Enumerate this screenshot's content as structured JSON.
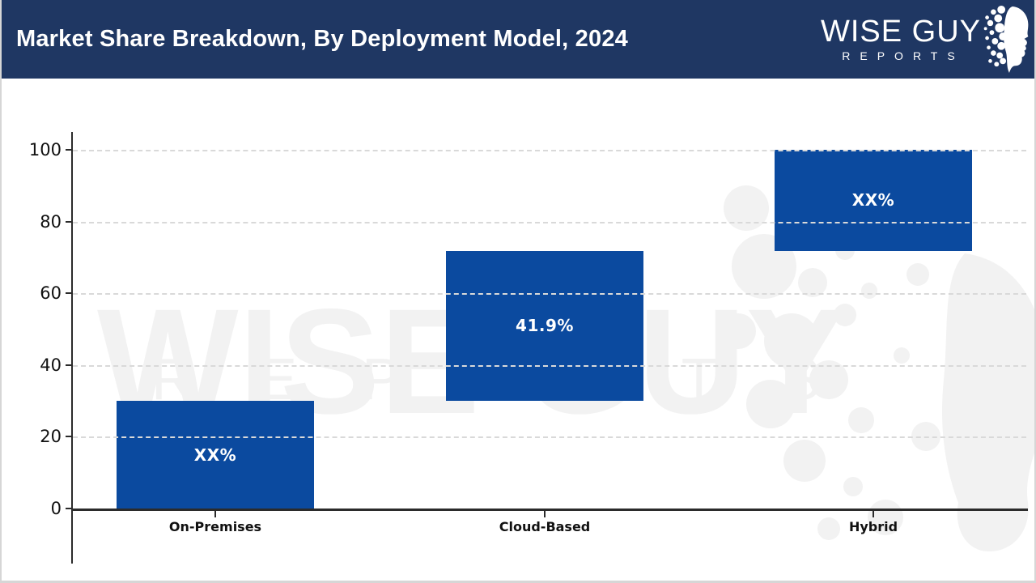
{
  "header": {
    "title": "Market Share Breakdown, By Deployment Model, 2024",
    "logo": {
      "line1": "WISE GUY",
      "line2": "REPORTS"
    }
  },
  "watermark": {
    "line1": "WISE GUY",
    "line2": "REPORTS"
  },
  "colors": {
    "header_bg": "#1f3763",
    "bar_fill": "#0b4a9f",
    "bar_label": "#ffffff",
    "axis": "#2b2b2b",
    "gridline": "#d9d9d9",
    "watermark": "#f2f2f2"
  },
  "chart_data": {
    "type": "bar",
    "subtype": "floating-waterfall",
    "title": "Market Share Breakdown, By Deployment Model, 2024",
    "xlabel": "",
    "ylabel": "",
    "categories": [
      "On-Premises",
      "Cloud-Based",
      "Hybrid"
    ],
    "segments": [
      {
        "category": "On-Premises",
        "start": 0,
        "end": 30,
        "label": "XX%"
      },
      {
        "category": "Cloud-Based",
        "start": 30,
        "end": 71.9,
        "label": "41.9%"
      },
      {
        "category": "Hybrid",
        "start": 71.9,
        "end": 100,
        "label": "XX%"
      }
    ],
    "yticks": [
      0,
      20,
      40,
      60,
      80,
      100
    ],
    "ylim": [
      0,
      105
    ],
    "grid": "horizontal-dashed",
    "legend": null
  }
}
